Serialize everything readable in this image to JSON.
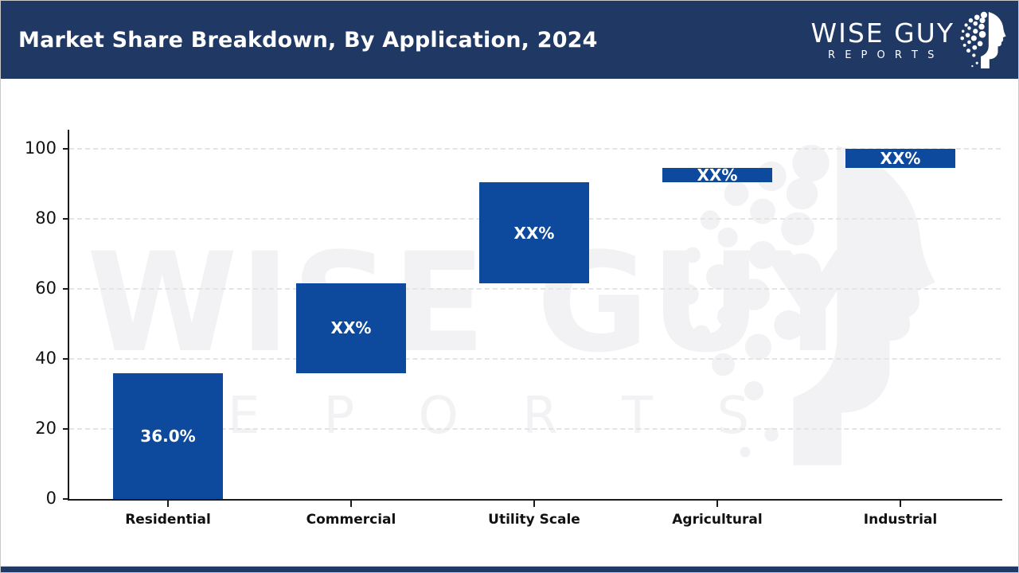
{
  "header": {
    "title": "Market Share Breakdown, By Application, 2024",
    "logo": {
      "line1": "WISE GUY",
      "line2": "R E P O R T S"
    }
  },
  "watermark": {
    "line1": "WISE GUY",
    "line2": "R E P O R T S"
  },
  "colors": {
    "header_navy": "#1f3864",
    "bar_blue": "#0d4a9e",
    "axis_black": "#1a1a1a",
    "gridline_gray": "#e4e4e4",
    "watermark_gray": "#f2f2f4",
    "bar_label_white": "#ffffff"
  },
  "chart_data": {
    "type": "bar",
    "subtype": "floating-waterfall",
    "title": "Market Share Breakdown, By Application, 2024",
    "categories": [
      "Residential",
      "Commercial",
      "Utility Scale",
      "Agricultural",
      "Industrial"
    ],
    "segments": [
      {
        "category": "Residential",
        "start": 0,
        "end": 36,
        "label": "36.0%"
      },
      {
        "category": "Commercial",
        "start": 36,
        "end": 61.5,
        "label": "XX%"
      },
      {
        "category": "Utility Scale",
        "start": 61.5,
        "end": 90.5,
        "label": "XX%"
      },
      {
        "category": "Agricultural",
        "start": 90.5,
        "end": 94.5,
        "label": "XX%"
      },
      {
        "category": "Industrial",
        "start": 94.5,
        "end": 100,
        "label": "XX%"
      }
    ],
    "y_ticks": [
      0,
      20,
      40,
      60,
      80,
      100
    ],
    "ylim": [
      0,
      105
    ],
    "xlabel": "",
    "ylabel": "",
    "grid": "horizontal-dashed",
    "legend": "none",
    "bar_color": "#0d4a9e"
  }
}
